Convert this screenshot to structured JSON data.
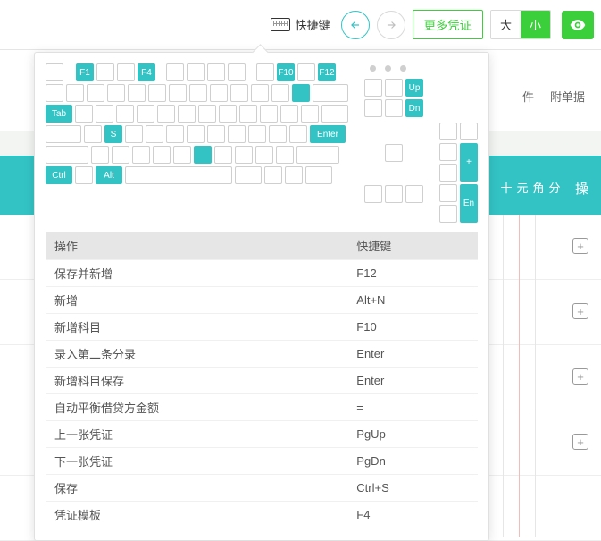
{
  "colors": {
    "accent": "#34c3c5",
    "green": "#3bcf3b",
    "header_bg": "#e6e6e6"
  },
  "toolbar": {
    "shortcut_label": "快捷键",
    "more_label": "更多凭证",
    "size_large": "大",
    "size_small": "小"
  },
  "ledger": {
    "top_right_labels": [
      "件",
      "附单据"
    ],
    "amount_chars": [
      "十",
      "元",
      "角",
      "分"
    ],
    "op_label": "操"
  },
  "keyboard": {
    "labeled_keys": {
      "f1": "F1",
      "f4": "F4",
      "f10": "F10",
      "f12": "F12",
      "tab": "Tab",
      "s": "S",
      "enter": "Enter",
      "ctrl": "Ctrl",
      "alt": "Alt",
      "up": "Up",
      "dn": "Dn",
      "plus": "+",
      "en": "En"
    }
  },
  "shortcut_table": {
    "col_action": "操作",
    "col_key": "快捷键",
    "rows": [
      {
        "action": "保存并新增",
        "key": "F12"
      },
      {
        "action": "新增",
        "key": "Alt+N"
      },
      {
        "action": "新增科目",
        "key": "F10"
      },
      {
        "action": "录入第二条分录",
        "key": "Enter"
      },
      {
        "action": "新增科目保存",
        "key": "Enter"
      },
      {
        "action": "自动平衡借贷方金额",
        "key": "="
      },
      {
        "action": "上一张凭证",
        "key": "PgUp"
      },
      {
        "action": "下一张凭证",
        "key": "PgDn"
      },
      {
        "action": "保存",
        "key": "Ctrl+S"
      },
      {
        "action": "凭证模板",
        "key": "F4"
      }
    ]
  }
}
